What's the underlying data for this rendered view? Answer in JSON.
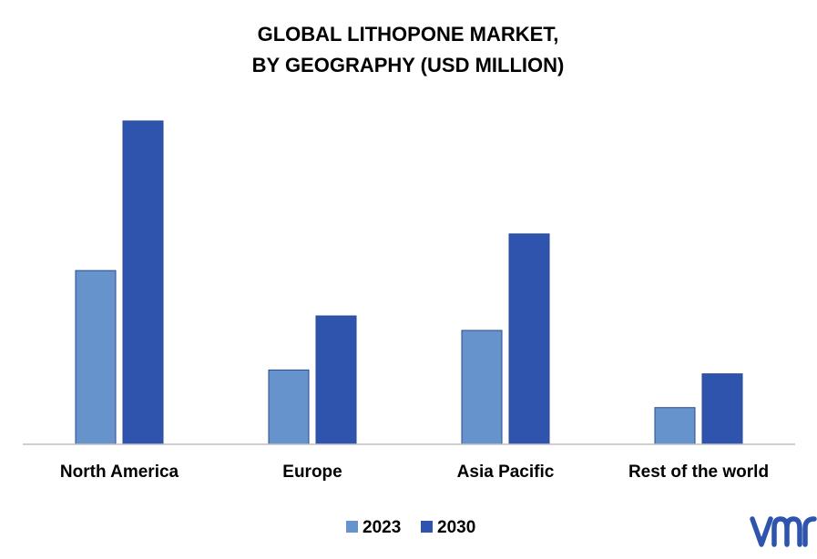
{
  "chart_data": {
    "type": "bar",
    "title": "GLOBAL LITHOPONE MARKET,\nBY GEOGRAPHY (USD MILLION)",
    "categories": [
      "North America",
      "Europe",
      "Asia Pacific",
      "Rest of the world"
    ],
    "series": [
      {
        "name": "2023",
        "values": [
          180,
          77,
          118,
          38
        ],
        "color": "#6793cc"
      },
      {
        "name": "2030",
        "values": [
          335,
          133,
          218,
          73
        ],
        "color": "#2e54ad"
      }
    ],
    "ylim": [
      0,
      350
    ],
    "grid": false,
    "legend": "bottom"
  },
  "logo": {
    "text": "vmr",
    "color": "#2e54ad"
  }
}
